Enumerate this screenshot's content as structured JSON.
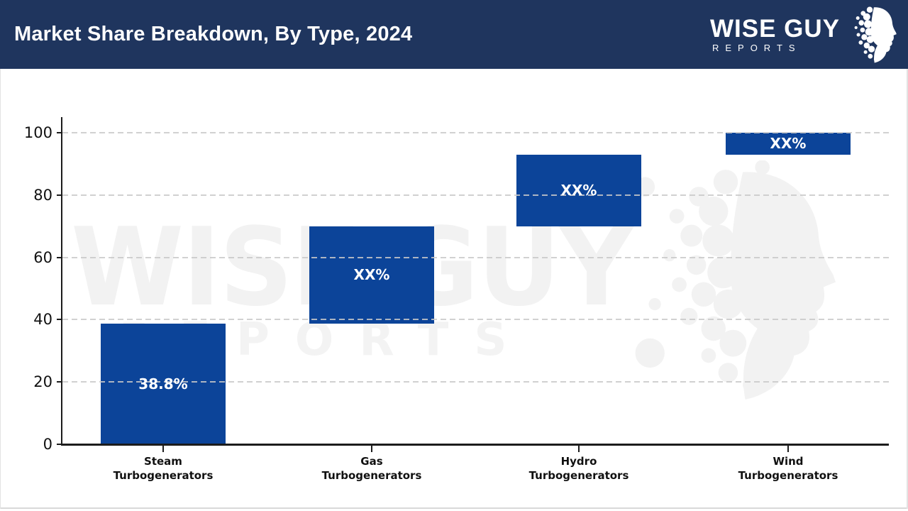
{
  "header": {
    "title": "Market Share Breakdown, By Type, 2024",
    "logo": {
      "name": "WISE GUY",
      "tagline": "REPORTS"
    }
  },
  "watermark": {
    "line1": "WISE GUY",
    "line2": "REPORTS"
  },
  "colors": {
    "header_bg": "#1f355e",
    "bar": "#0c4499",
    "bar_label_text": "#ffffff",
    "grid": "#c9c9c9",
    "axis": "#1c1c1c",
    "watermark": "#f2f2f2"
  },
  "chart_data": {
    "type": "bar",
    "subtype": "waterfall",
    "title": "Market Share Breakdown, By Type, 2024",
    "categories": [
      {
        "line1": "Steam",
        "line2": "Turbogenerators"
      },
      {
        "line1": "Gas",
        "line2": "Turbogenerators"
      },
      {
        "line1": "Hydro",
        "line2": "Turbogenerators"
      },
      {
        "line1": "Wind",
        "line2": "Turbogenerators"
      }
    ],
    "segments": [
      {
        "from": 0,
        "to": 38.8,
        "label": "38.8%"
      },
      {
        "from": 38.8,
        "to": 70,
        "label": "XX%"
      },
      {
        "from": 70,
        "to": 93,
        "label": "XX%"
      },
      {
        "from": 93,
        "to": 100,
        "label": "XX%"
      }
    ],
    "yticks": [
      0,
      20,
      40,
      60,
      80,
      100
    ],
    "ylim": [
      0,
      104
    ],
    "xlabel": "",
    "ylabel": "",
    "grid": "dashed-horizontal",
    "legend": "none",
    "bar_color": "#0c4499"
  }
}
